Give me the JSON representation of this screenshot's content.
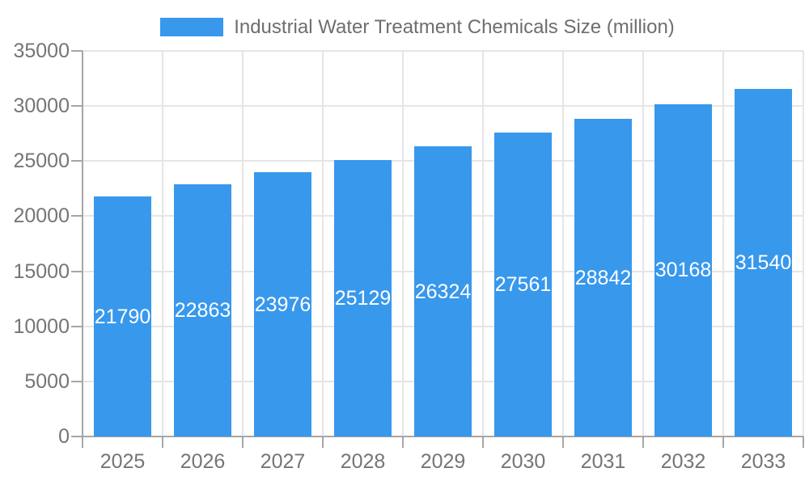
{
  "chart_data": {
    "type": "bar",
    "title": "Industrial Water Treatment Chemicals Size (million)",
    "legend": [
      "Industrial Water Treatment Chemicals Size (million)"
    ],
    "legend_position": "top",
    "categories": [
      "2025",
      "2026",
      "2027",
      "2028",
      "2029",
      "2030",
      "2031",
      "2032",
      "2033"
    ],
    "values": [
      21790,
      22863,
      23976,
      25129,
      26324,
      27561,
      28842,
      30168,
      31540
    ],
    "value_labels": [
      "21790",
      "22863",
      "23976",
      "25129",
      "26324",
      "27561",
      "28842",
      "30168",
      "31540"
    ],
    "xlabel": "",
    "ylabel": "",
    "ylim": [
      0,
      35000
    ],
    "yticks": [
      0,
      5000,
      10000,
      15000,
      20000,
      25000,
      30000,
      35000
    ],
    "ytick_labels": [
      "0",
      "5000",
      "10000",
      "15000",
      "20000",
      "25000",
      "30000",
      "35000"
    ],
    "grid": true,
    "colors": {
      "bar": "#3898EC",
      "grid_line": "#E5E5E5",
      "axis_line": "#A6A6A6",
      "tick_label": "#757575",
      "legend_text": "#6E6E6E",
      "value_label": "#FFFFFF",
      "background": "#FFFFFF"
    }
  }
}
